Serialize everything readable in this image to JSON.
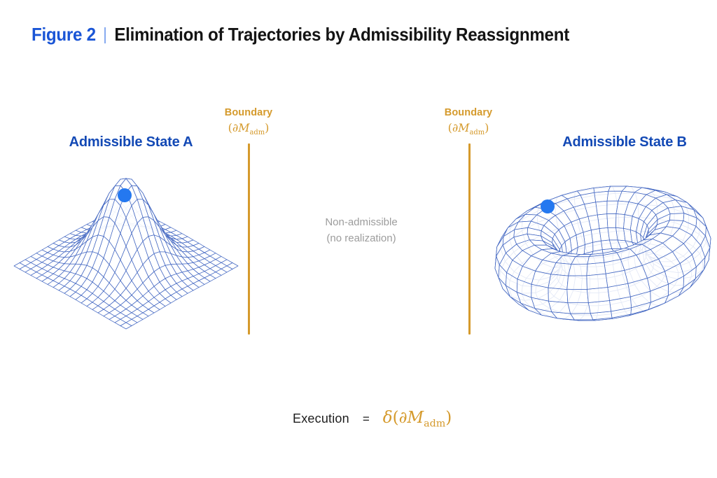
{
  "header": {
    "figure_label": "Figure 2",
    "separator": "|",
    "title": "Elimination of Trajectories by Admissibility Reassignment"
  },
  "left_panel": {
    "label": "Admissible State A",
    "surface": "gaussian-bump-wireframe",
    "marker": "blue-dot"
  },
  "right_panel": {
    "label": "Admissible State B",
    "surface": "torus-wireframe",
    "marker": "blue-dot"
  },
  "boundary": {
    "title": "Boundary",
    "math": {
      "open": "(",
      "core": "∂M",
      "sub": "adm",
      "close": ")"
    }
  },
  "center_note": {
    "line1": "Non-admissible",
    "line2": "(no realization)"
  },
  "equation": {
    "lhs": "Execution",
    "relation": "=",
    "math": {
      "delta": "δ",
      "open": "(",
      "core": "∂M",
      "sub": "adm",
      "close": ")"
    }
  },
  "colors": {
    "accent_blue": "#1A55D6",
    "separator_blue": "#7FA5EF",
    "ink": "#141414",
    "label_blue": "#1349B5",
    "orange": "#D59A2C",
    "gray": "#9C9C9C",
    "dot_blue": "#2478F0",
    "wire_blue": "#4468C2"
  }
}
